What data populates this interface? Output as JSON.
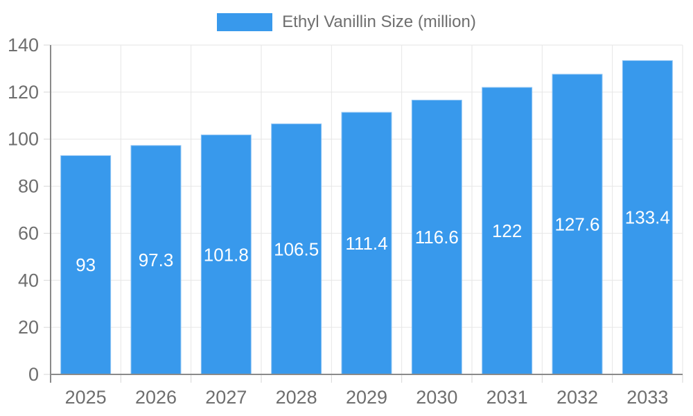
{
  "chart_data": {
    "type": "bar",
    "title": "",
    "legend": "Ethyl Vanillin Size (million)",
    "legend_position": "top-center",
    "categories": [
      "2025",
      "2026",
      "2027",
      "2028",
      "2029",
      "2030",
      "2031",
      "2032",
      "2033"
    ],
    "values": [
      93,
      97.3,
      101.8,
      106.5,
      111.4,
      116.6,
      122,
      127.6,
      133.4
    ],
    "value_labels": [
      "93",
      "97.3",
      "101.8",
      "106.5",
      "111.4",
      "116.6",
      "122",
      "127.6",
      "133.4"
    ],
    "xlabel": "",
    "ylabel": "",
    "ylim": [
      0,
      140
    ],
    "yticks": [
      0,
      20,
      40,
      60,
      80,
      100,
      120,
      140
    ],
    "grid": true,
    "colors": {
      "bar": "#3899ec",
      "bar_edge": "#8ec4f4",
      "value_label": "#ffffff",
      "axis_text": "#6e6e6e",
      "grid_line": "#e6e6e6",
      "tick_line": "#d6d6d6",
      "axis_line": "#8a8a8a",
      "background": "#ffffff"
    }
  }
}
